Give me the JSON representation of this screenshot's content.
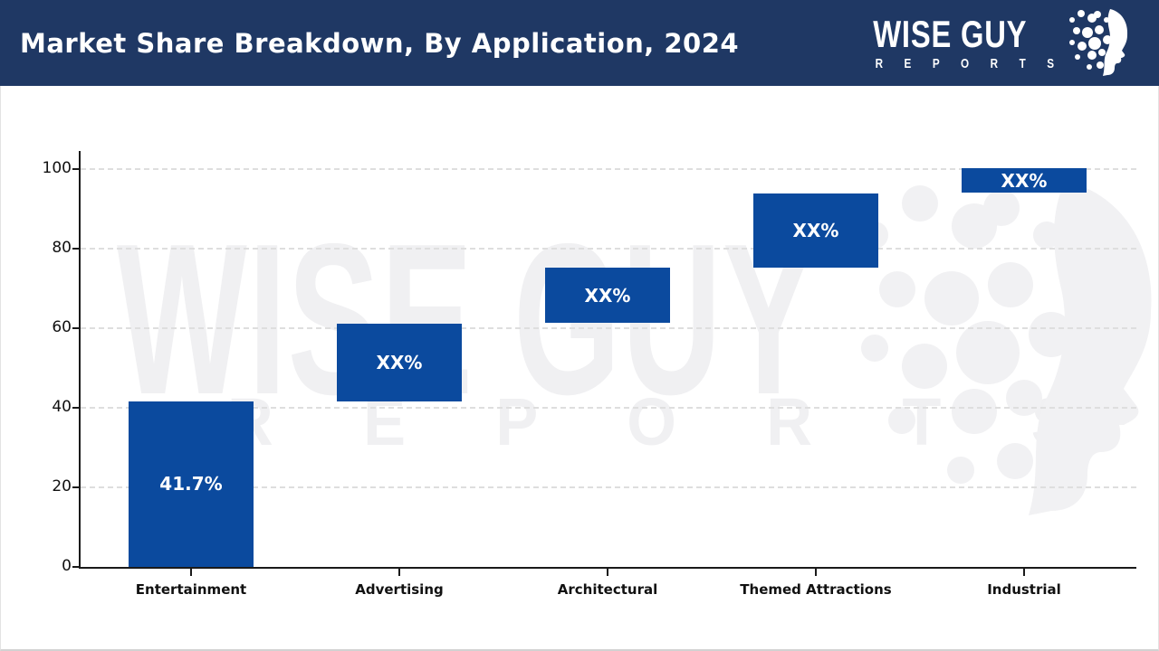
{
  "header": {
    "title": "Market Share Breakdown, By Application, 2024",
    "bg_color": "#1f3864",
    "logo": {
      "line1": "WISE GUY",
      "line2": "R E P O R T S"
    }
  },
  "watermark": {
    "line1": "WISE GUY",
    "line2": "R E P O R T S"
  },
  "chart_data": {
    "type": "bar",
    "subtype": "waterfall",
    "title": "Market Share Breakdown, By Application, 2024",
    "xlabel": "",
    "ylabel": "",
    "categories": [
      "Entertainment",
      "Advertising",
      "Architectural",
      "Themed Attractions",
      "Industrial"
    ],
    "segments": [
      {
        "category": "Entertainment",
        "start": 0,
        "end": 41.7,
        "label": "41.7%"
      },
      {
        "category": "Advertising",
        "start": 41.7,
        "end": 61.2,
        "label": "XX%"
      },
      {
        "category": "Architectural",
        "start": 61.3,
        "end": 75.2,
        "label": "XX%"
      },
      {
        "category": "Themed Attractions",
        "start": 75.3,
        "end": 93.9,
        "label": "XX%"
      },
      {
        "category": "Industrial",
        "start": 94.0,
        "end": 100.3,
        "label": "XX%"
      }
    ],
    "yticks": [
      0,
      20,
      40,
      60,
      80,
      100
    ],
    "ylim": [
      0,
      105
    ],
    "grid": "horizontal-dashed",
    "legend": "none",
    "bar_color": "#0b4a9e",
    "bar_label_color": "#ffffff"
  }
}
